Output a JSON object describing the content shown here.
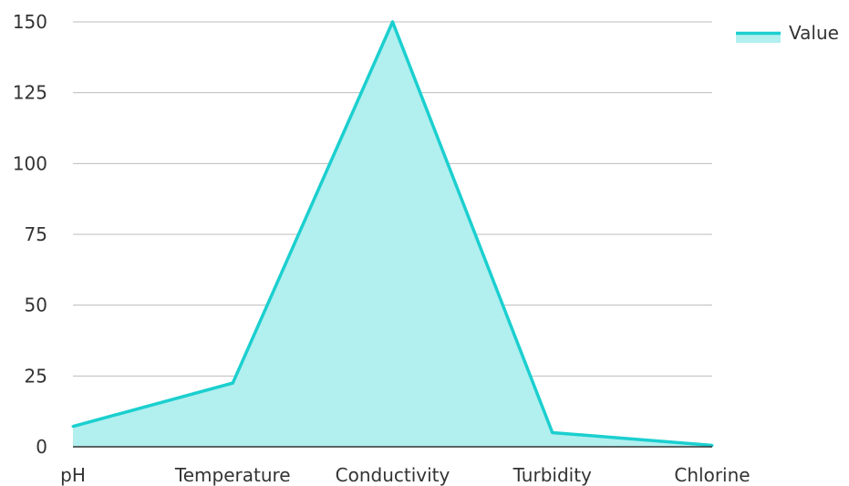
{
  "chart_data": {
    "type": "area",
    "categories": [
      "pH",
      "Temperature",
      "Conductivity",
      "Turbidity",
      "Chlorine"
    ],
    "series": [
      {
        "name": "Value",
        "values": [
          7.2,
          22.5,
          150,
          5,
          0.5
        ]
      }
    ],
    "ylim": [
      0,
      150
    ],
    "yticks": [
      0,
      25,
      50,
      75,
      100,
      125,
      150
    ],
    "grid": true,
    "legend": "top-right",
    "colors": {
      "line": "#1ccfcf",
      "fill": "#b2efef",
      "grid": "#bdbdbd",
      "baseline": "#333333"
    }
  }
}
